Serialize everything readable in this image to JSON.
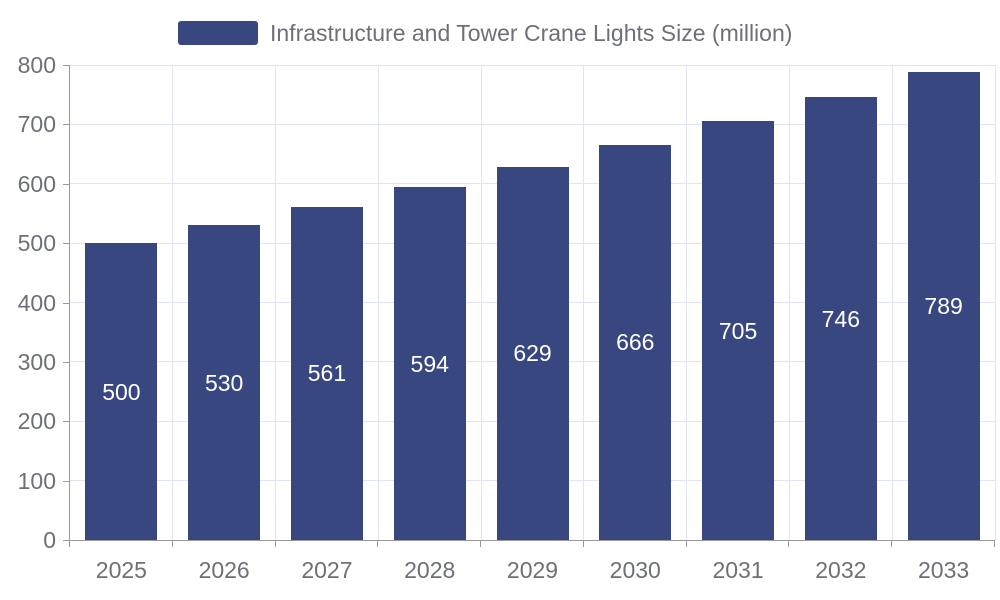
{
  "chart_data": {
    "type": "bar",
    "title": "",
    "legend_position": "top",
    "categories": [
      "2025",
      "2026",
      "2027",
      "2028",
      "2029",
      "2030",
      "2031",
      "2032",
      "2033"
    ],
    "series": [
      {
        "name": "Infrastructure and Tower Crane Lights Size (million)",
        "values": [
          500,
          530,
          561,
          594,
          629,
          666,
          705,
          746,
          789
        ]
      }
    ],
    "yticks": [
      0,
      100,
      200,
      300,
      400,
      500,
      600,
      700,
      800
    ],
    "ylim": [
      0,
      800
    ],
    "xlabel": "",
    "ylabel": "",
    "grid": true,
    "colors": {
      "bar": "#394780",
      "value_label": "#FFFFFF",
      "axis_text": "#6E7079",
      "grid_line": "#E0E6F1",
      "axis_line": "#999999",
      "background": "#FFFFFF"
    }
  }
}
